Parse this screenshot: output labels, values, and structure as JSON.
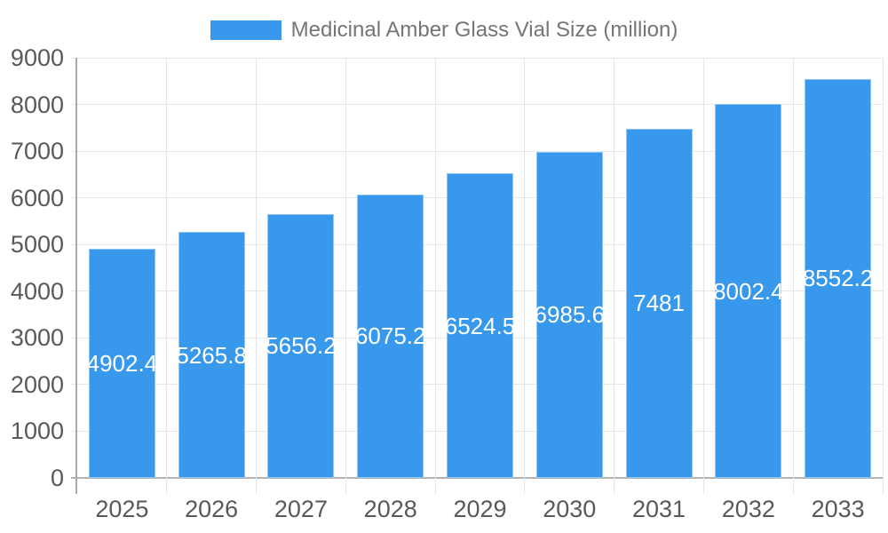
{
  "chart_data": {
    "type": "bar",
    "title": "Medicinal Amber Glass Vial Size (million)",
    "categories": [
      "2025",
      "2026",
      "2027",
      "2028",
      "2029",
      "2030",
      "2031",
      "2032",
      "2033"
    ],
    "values": [
      4902.4,
      5265.8,
      5656.2,
      6075.2,
      6524.5,
      6985.6,
      7481,
      8002.4,
      8552.2
    ],
    "value_labels": [
      "4902.4",
      "5265.8",
      "5656.2",
      "6075.2",
      "6524.5",
      "6985.6",
      "7481",
      "8002.4",
      "8552.2"
    ],
    "xlabel": "",
    "ylabel": "",
    "ylim": [
      0,
      9000
    ],
    "yticks": [
      0,
      1000,
      2000,
      3000,
      4000,
      5000,
      6000,
      7000,
      8000,
      9000
    ],
    "grid": true,
    "legend_position": "top",
    "colors": {
      "bar": "#3899EC",
      "grid": "#e6e6e6",
      "zero_line": "#b3b3b3",
      "axis_line": "#a9a9a9",
      "axis_label": "#595959",
      "legend_text": "#757575",
      "value_label": "#ffffff",
      "background": "#ffffff"
    }
  }
}
